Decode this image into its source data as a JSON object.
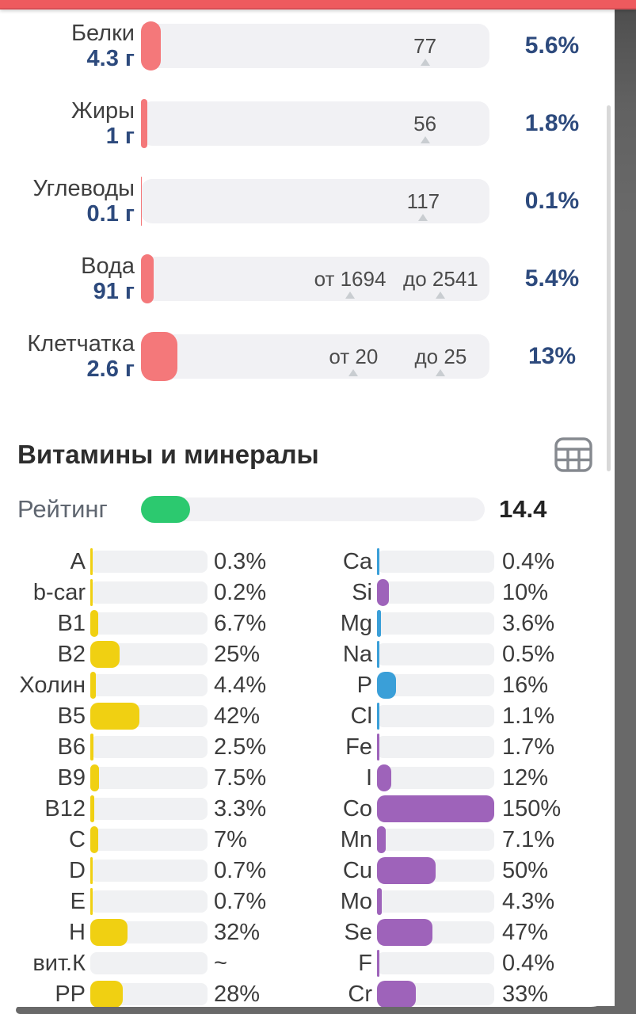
{
  "theme": {
    "top_bar_color": "#ee5a5e",
    "dark_background": "#696969",
    "track_color": "#f1f1f4",
    "percent_text_color": "#2d4a7d",
    "rating_green": "#2cc96f",
    "bar_colors": {
      "red": "#f4787a",
      "yellow": "#f0d012",
      "blue": "#3a9fd8",
      "purple": "#9e63ba"
    }
  },
  "macros": {
    "rows": [
      {
        "name": "Белки",
        "amount": "4.3 г",
        "percent": "5.6%",
        "fill_pct": 5.6,
        "color": "red",
        "markers": [
          {
            "text": "77",
            "pos": 0.815
          }
        ]
      },
      {
        "name": "Жиры",
        "amount": "1 г",
        "percent": "1.8%",
        "fill_pct": 1.8,
        "color": "red",
        "markers": [
          {
            "text": "56",
            "pos": 0.815
          }
        ]
      },
      {
        "name": "Углеводы",
        "amount": "0.1 г",
        "percent": "0.1%",
        "fill_pct": 0.09,
        "color": "red",
        "markers": [
          {
            "text": "117",
            "pos": 0.81
          }
        ]
      },
      {
        "name": "Вода",
        "amount": "91 г",
        "percent": "5.4%",
        "fill_pct": 3.6,
        "color": "red",
        "markers": [
          {
            "text": "от 1694",
            "pos": 0.6
          },
          {
            "text": "до 2541",
            "pos": 0.86
          }
        ]
      },
      {
        "name": "Клетчатка",
        "amount": "2.6 г",
        "percent": "13%",
        "fill_pct": 10.4,
        "color": "red",
        "markers": [
          {
            "text": "от 20",
            "pos": 0.61
          },
          {
            "text": "до 25",
            "pos": 0.86
          }
        ]
      }
    ]
  },
  "vitamins": {
    "title": "Витамины и минералы",
    "table_icon": "table-grid-icon",
    "rating": {
      "label": "Рейтинг",
      "value": "14.4",
      "fill_pct": 14.4
    },
    "left_column": [
      {
        "label": "A",
        "value": "0.3%",
        "fill_pct": 0.3,
        "color": "yellow"
      },
      {
        "label": "b-car",
        "value": "0.2%",
        "fill_pct": 0.2,
        "color": "yellow"
      },
      {
        "label": "B1",
        "value": "6.7%",
        "fill_pct": 6.7,
        "color": "yellow"
      },
      {
        "label": "B2",
        "value": "25%",
        "fill_pct": 25,
        "color": "yellow"
      },
      {
        "label": "Холин",
        "value": "4.4%",
        "fill_pct": 4.4,
        "color": "yellow"
      },
      {
        "label": "B5",
        "value": "42%",
        "fill_pct": 42,
        "color": "yellow"
      },
      {
        "label": "B6",
        "value": "2.5%",
        "fill_pct": 2.5,
        "color": "yellow"
      },
      {
        "label": "B9",
        "value": "7.5%",
        "fill_pct": 7.5,
        "color": "yellow"
      },
      {
        "label": "B12",
        "value": "3.3%",
        "fill_pct": 3.3,
        "color": "yellow"
      },
      {
        "label": "C",
        "value": "7%",
        "fill_pct": 7,
        "color": "yellow"
      },
      {
        "label": "D",
        "value": "0.7%",
        "fill_pct": 0.7,
        "color": "yellow"
      },
      {
        "label": "E",
        "value": "0.7%",
        "fill_pct": 0.7,
        "color": "yellow"
      },
      {
        "label": "H",
        "value": "32%",
        "fill_pct": 32,
        "color": "yellow"
      },
      {
        "label": "вит.К",
        "value": "~",
        "fill_pct": 0,
        "color": "yellow"
      },
      {
        "label": "PP",
        "value": "28%",
        "fill_pct": 28,
        "color": "yellow"
      }
    ],
    "right_column": [
      {
        "label": "Ca",
        "value": "0.4%",
        "fill_pct": 0.4,
        "color": "blue"
      },
      {
        "label": "Si",
        "value": "10%",
        "fill_pct": 10,
        "color": "purple"
      },
      {
        "label": "Mg",
        "value": "3.6%",
        "fill_pct": 3.6,
        "color": "blue"
      },
      {
        "label": "Na",
        "value": "0.5%",
        "fill_pct": 0.5,
        "color": "blue"
      },
      {
        "label": "P",
        "value": "16%",
        "fill_pct": 16,
        "color": "blue"
      },
      {
        "label": "Cl",
        "value": "1.1%",
        "fill_pct": 1.1,
        "color": "blue"
      },
      {
        "label": "Fe",
        "value": "1.7%",
        "fill_pct": 1.7,
        "color": "purple"
      },
      {
        "label": "I",
        "value": "12%",
        "fill_pct": 12,
        "color": "purple"
      },
      {
        "label": "Co",
        "value": "150%",
        "fill_pct": 150,
        "color": "purple"
      },
      {
        "label": "Mn",
        "value": "7.1%",
        "fill_pct": 7.1,
        "color": "purple"
      },
      {
        "label": "Cu",
        "value": "50%",
        "fill_pct": 50,
        "color": "purple"
      },
      {
        "label": "Mo",
        "value": "4.3%",
        "fill_pct": 4.3,
        "color": "purple"
      },
      {
        "label": "Se",
        "value": "47%",
        "fill_pct": 47,
        "color": "purple"
      },
      {
        "label": "F",
        "value": "0.4%",
        "fill_pct": 0.4,
        "color": "purple"
      },
      {
        "label": "Cr",
        "value": "33%",
        "fill_pct": 33,
        "color": "purple"
      }
    ]
  }
}
